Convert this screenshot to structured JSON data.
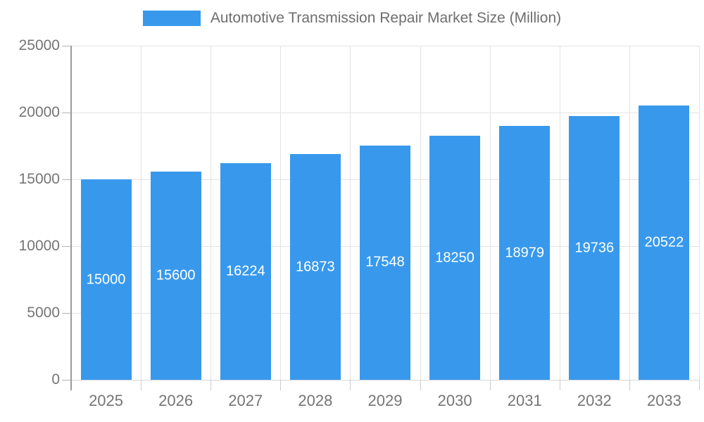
{
  "chart_data": {
    "type": "bar",
    "title": "Automotive Transmission Repair Market Size (Million)",
    "categories": [
      "2025",
      "2026",
      "2027",
      "2028",
      "2029",
      "2030",
      "2031",
      "2032",
      "2033"
    ],
    "values": [
      15000,
      15600,
      16224,
      16873,
      17548,
      18250,
      18979,
      19736,
      20522
    ],
    "xlabel": "",
    "ylabel": "",
    "ylim": [
      0,
      25000
    ],
    "yticks": [
      0,
      5000,
      10000,
      15000,
      20000,
      25000
    ],
    "grid": "on",
    "legend_position": "top-center",
    "bar_color": "#3899EC",
    "value_label_color": "#ffffff",
    "axis_text_color": "#757575",
    "legend_text_color": "#6e6e6e"
  }
}
